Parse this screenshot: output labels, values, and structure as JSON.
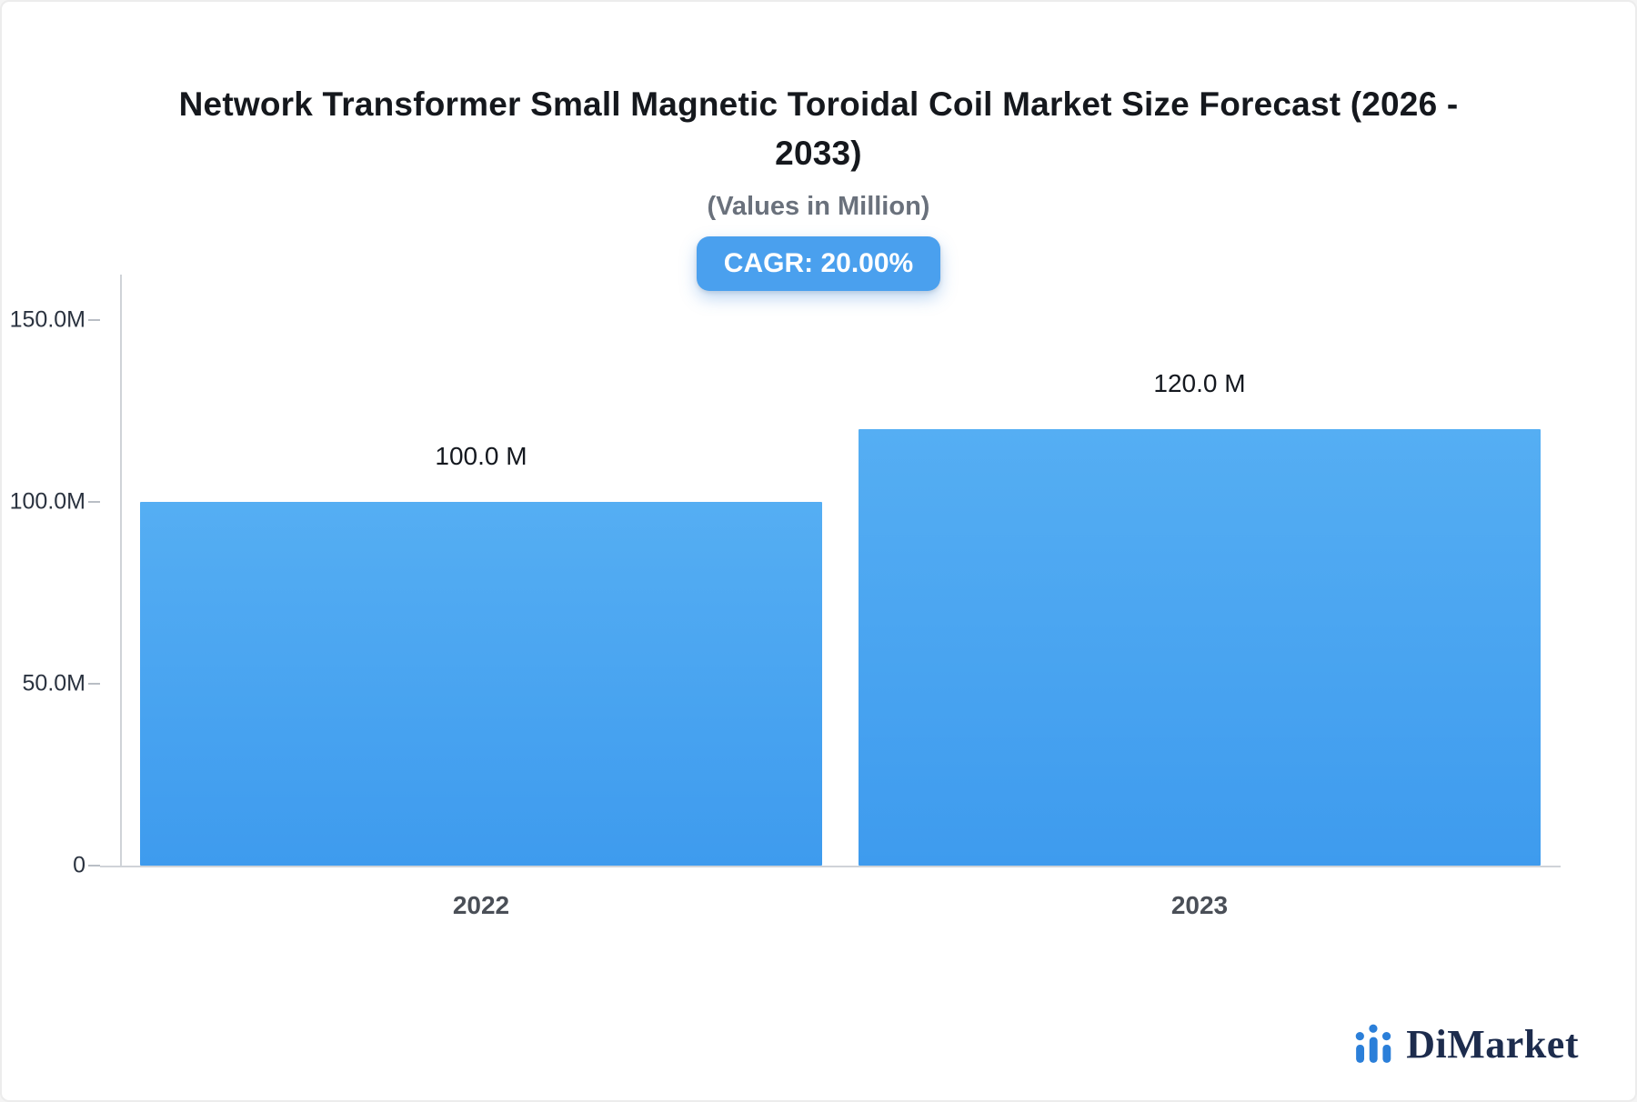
{
  "header": {
    "title_full": "Network Transformer Small Magnetic Toroidal Coil Market Size Forecast (2026 - 2033)",
    "title_line1": "Network Transformer Small Magnetic Toroidal Coil Market Size Forecast (2026 -",
    "title_line2": "2033)",
    "subtitle": "(Values in Million)",
    "cagr_badge": "CAGR: 20.00%"
  },
  "chart_data": {
    "type": "bar",
    "title": "Network Transformer Small Magnetic Toroidal Coil Market Size Forecast (2026 - 2033)",
    "subtitle": "(Values in Million)",
    "categories": [
      "2022",
      "2023"
    ],
    "values": [
      100.0,
      120.0
    ],
    "value_labels": [
      "100.0 M",
      "120.0 M"
    ],
    "unit": "Million",
    "xlabel": "",
    "ylabel": "",
    "ylim": [
      0,
      150
    ],
    "yticks": [
      {
        "value": 0,
        "label": "0"
      },
      {
        "value": 50,
        "label": "50.0M"
      },
      {
        "value": 100,
        "label": "100.0M"
      },
      {
        "value": 150,
        "label": "150.0M"
      }
    ],
    "grid": false,
    "legend": false,
    "colors": {
      "bar_top": "#55aef3",
      "bar_bottom": "#3e9bee",
      "badge_bg": "#4aa0ee",
      "axis_line": "#cfd3d8"
    }
  },
  "branding": {
    "logo_text": "DiMarket",
    "logo_icon": "bar-chart-icon",
    "logo_icon_color": "#2b7fd9",
    "logo_text_color": "#1d2c4d"
  }
}
